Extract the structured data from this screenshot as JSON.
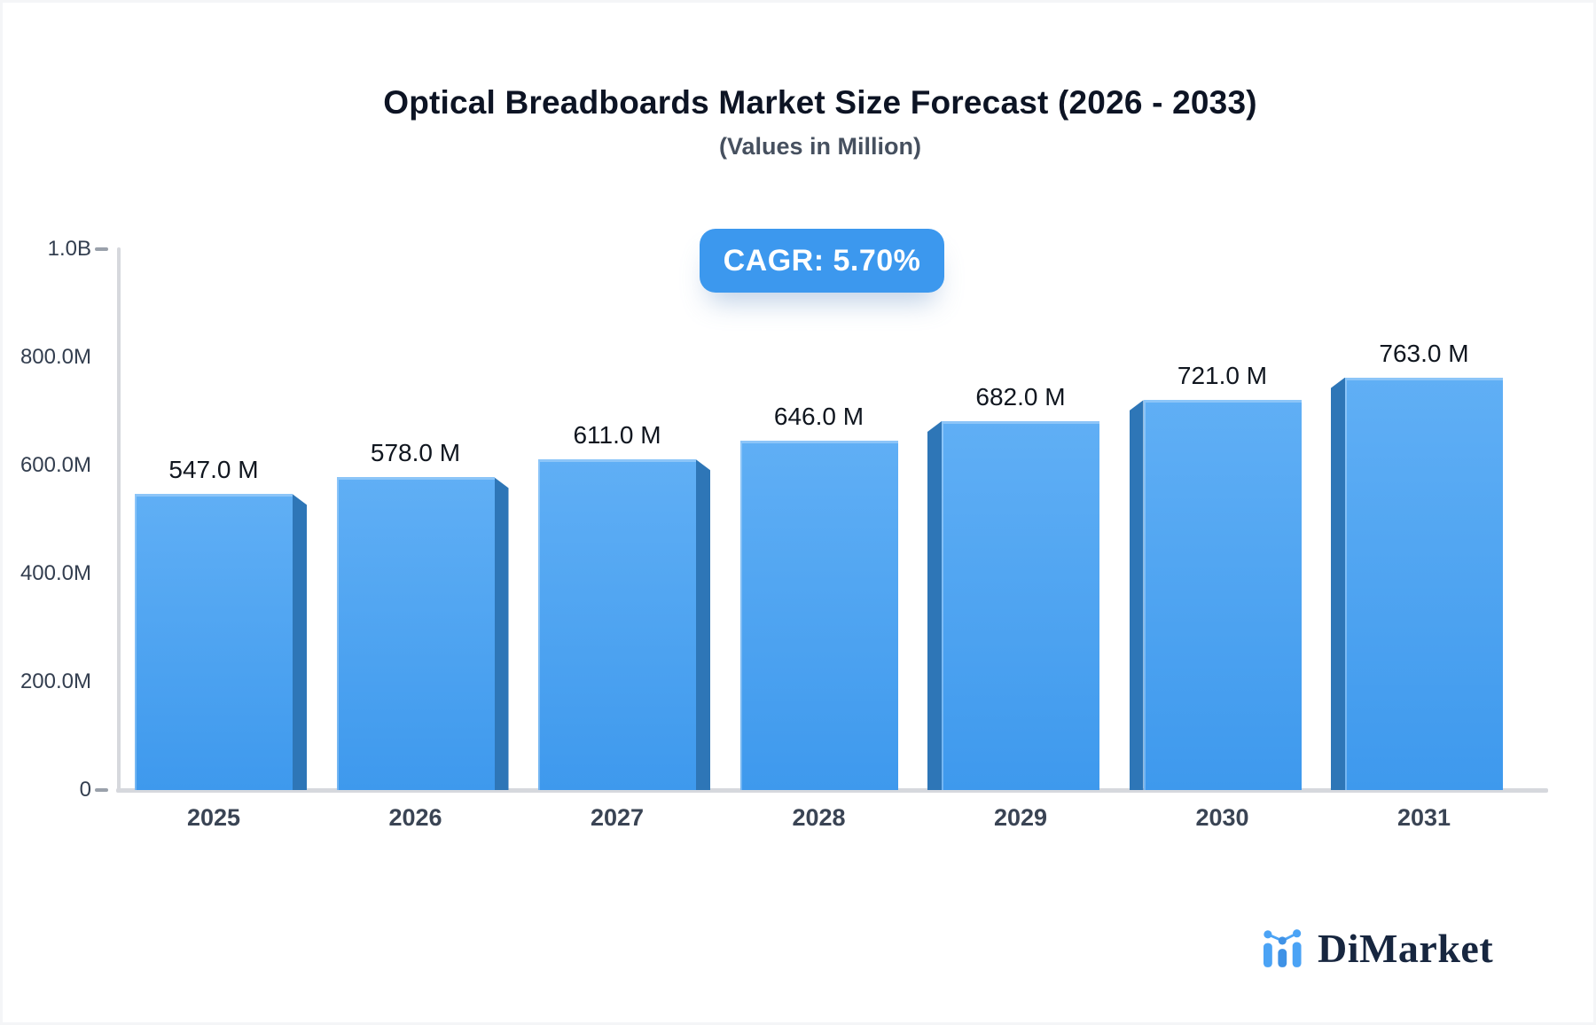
{
  "header": {
    "title": "Optical Breadboards Market Size Forecast (2026 - 2033)",
    "subtitle": "(Values in Million)"
  },
  "chart_data": {
    "type": "bar",
    "title": "Optical Breadboards Market Size Forecast (2026 - 2033)",
    "subtitle": "(Values in Million)",
    "annotation": "CAGR: 5.70%",
    "categories": [
      "2025",
      "2026",
      "2027",
      "2028",
      "2029",
      "2030",
      "2031"
    ],
    "values": [
      547,
      578,
      611,
      646,
      682,
      721,
      763
    ],
    "bar_labels": [
      "547.0 M",
      "578.0 M",
      "611.0 M",
      "646.0 M",
      "682.0 M",
      "721.0 M",
      "763.0 M"
    ],
    "xlabel": "",
    "ylabel": "",
    "ylim": [
      0,
      1000
    ],
    "y_tick_values": [
      0,
      200,
      400,
      600,
      800,
      1000
    ],
    "y_tick_labels": [
      "0",
      "200.0M",
      "400.0M",
      "600.0M",
      "800.0M",
      "1.0B"
    ],
    "grid": false,
    "legend": "none",
    "colors": {
      "bar_face_top": "#60AFF5",
      "bar_face_bottom": "#3E99ED",
      "bar_side": "#2E76B7",
      "badge_bg": "#3C98EE",
      "badge_text": "#FFFFFF",
      "axis": "#D6D8DD",
      "title": "#0D1424",
      "subtitle": "#46505F",
      "tick_label": "#333E4F",
      "x_label": "#3A4454",
      "value_label": "#10161F",
      "logo_text": "#17263F",
      "logo_icon": "#4BA3F5",
      "logo_icon_mid": "#3F92E6"
    }
  },
  "logo": {
    "text": "DiMarket",
    "icon": "bar-chart-logo-icon"
  }
}
